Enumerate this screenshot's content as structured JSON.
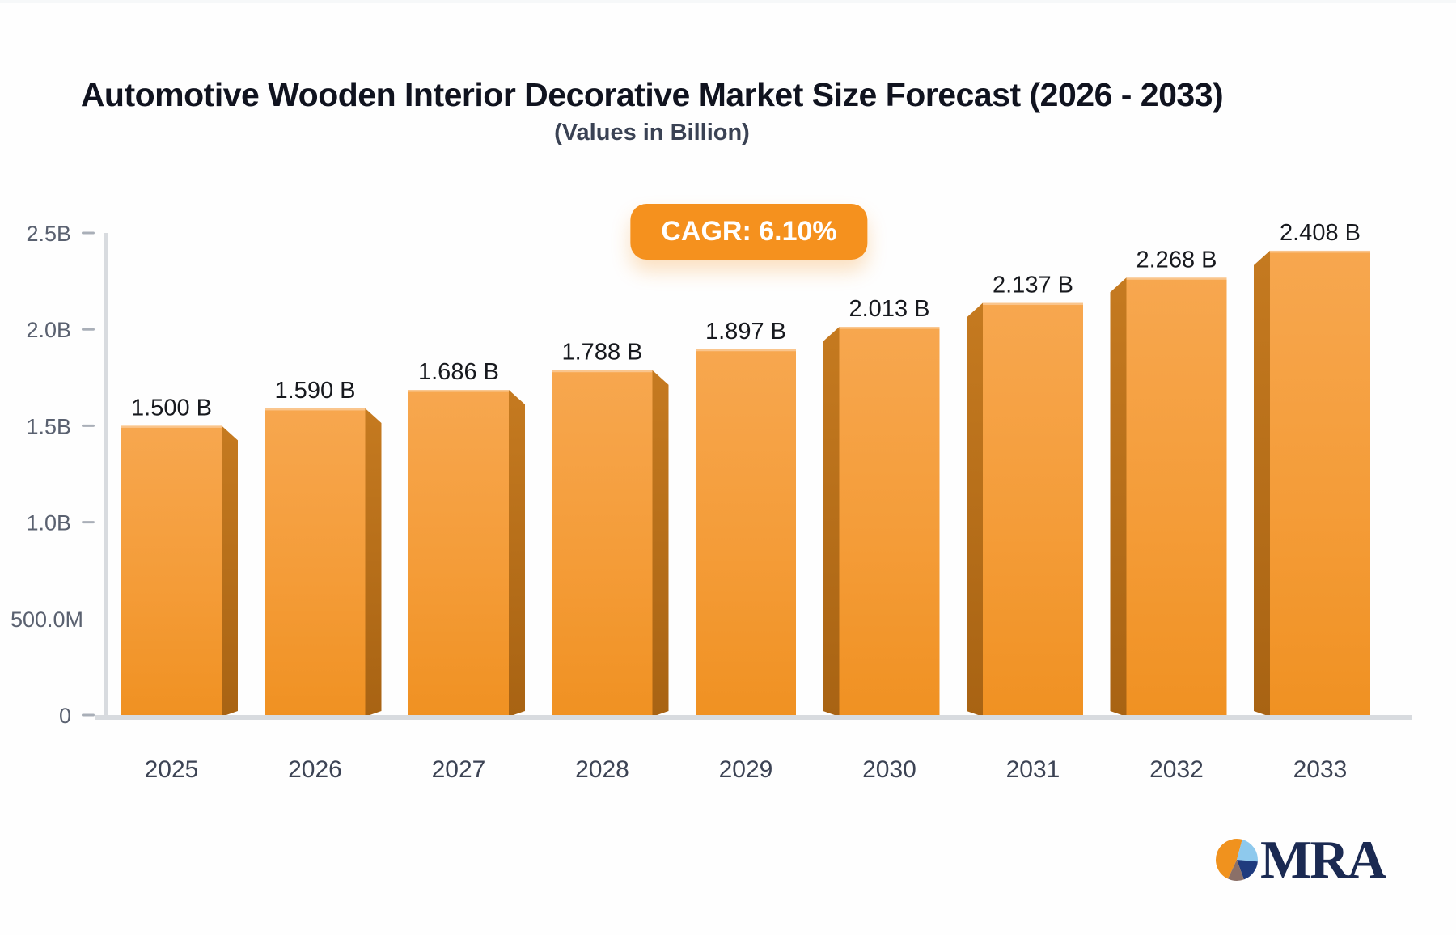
{
  "header": {
    "title": "Automotive Wooden Interior Decorative Market Size Forecast (2026 - 2033)",
    "subtitle": "(Values in Billion)"
  },
  "badge": {
    "label": "CAGR: 6.10%",
    "background": "#f5911e",
    "text_color": "#ffffff"
  },
  "chart_data": {
    "type": "bar",
    "title": "Automotive Wooden Interior Decorative Market Size Forecast (2026 - 2033)",
    "subtitle": "(Values in Billion)",
    "cagr": "6.10%",
    "categories": [
      "2025",
      "2026",
      "2027",
      "2028",
      "2029",
      "2030",
      "2031",
      "2032",
      "2033"
    ],
    "values": [
      1.5,
      1.59,
      1.686,
      1.788,
      1.897,
      2.013,
      2.137,
      2.268,
      2.408
    ],
    "value_labels": [
      "1.500 B",
      "1.590 B",
      "1.686 B",
      "1.788 B",
      "1.897 B",
      "2.013 B",
      "2.137 B",
      "2.268 B",
      "2.408 B"
    ],
    "unit": "Billion",
    "xlabel": "",
    "ylabel": "",
    "ylim": [
      0,
      2.5
    ],
    "grid": false,
    "legend": false,
    "yticks": [
      {
        "label": "2.5B",
        "value": 2.5,
        "tick": true
      },
      {
        "label": "2.0B",
        "value": 2.0,
        "tick": true
      },
      {
        "label": "1.5B",
        "value": 1.5,
        "tick": true
      },
      {
        "label": "1.0B",
        "value": 1.0,
        "tick": true
      },
      {
        "label": "500.0M",
        "value": 0.5,
        "tick": false
      },
      {
        "label": "0",
        "value": 0,
        "tick": true
      }
    ],
    "colors": {
      "bar_top": "#f7a74f",
      "bar_mid": "#f49c38",
      "bar_bottom": "#f09122",
      "side_top": "#c57a20",
      "side_bottom": "#a86313",
      "axis": "#d8dbdf",
      "tick": "#a9afb8",
      "ytick_label": "#5a6170",
      "xtick_label": "#3c4354",
      "value_label": "#17191e"
    }
  },
  "logo": {
    "text": "MRA",
    "text_color": "#1b2a52",
    "pie_colors": {
      "orange": "#f0921e",
      "light_blue": "#8ec9ed",
      "navy": "#1f3b7e",
      "taupe": "#8b7068"
    }
  }
}
